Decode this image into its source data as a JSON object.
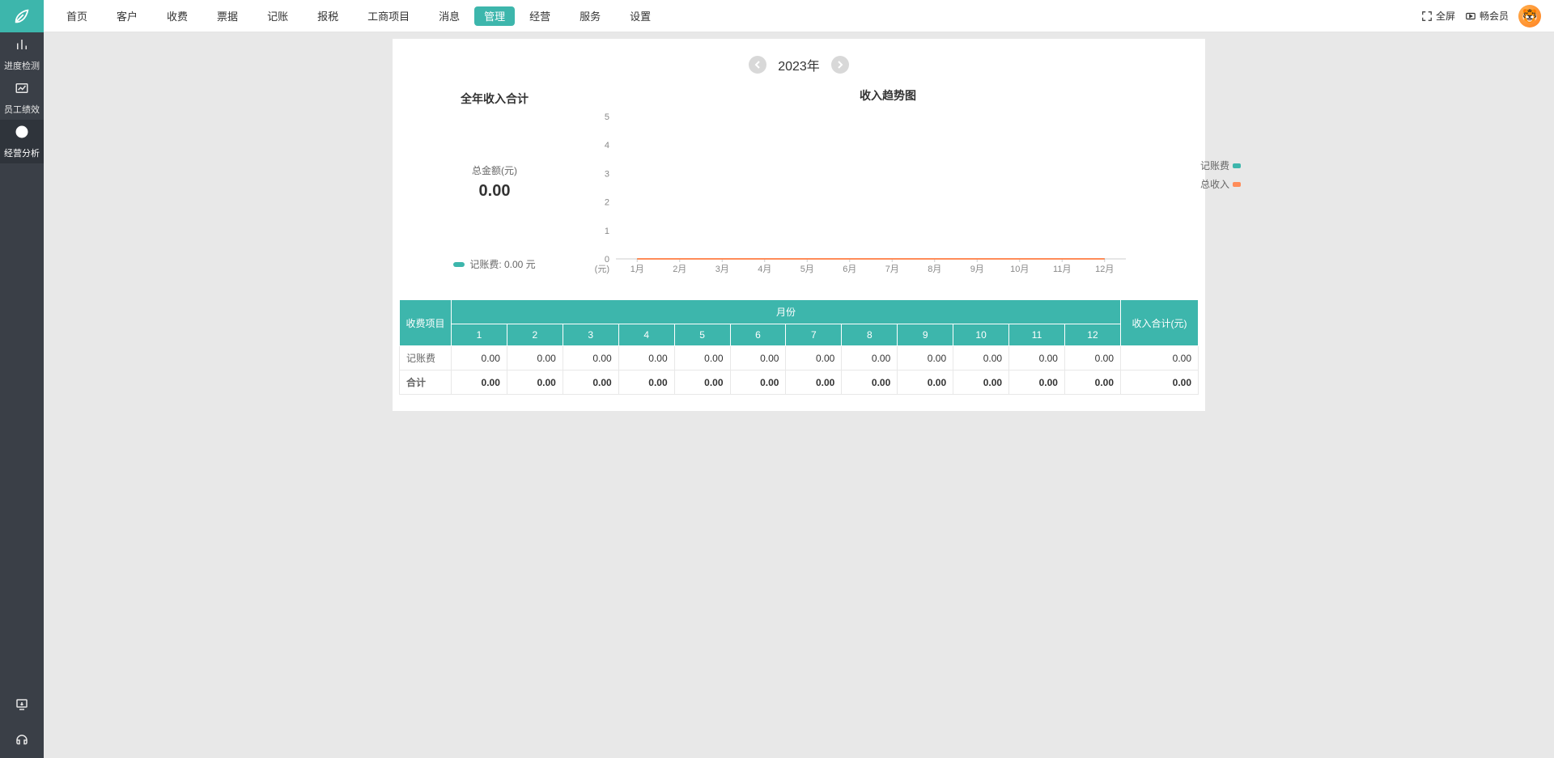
{
  "topnav": {
    "items": [
      "首页",
      "客户",
      "收费",
      "票据",
      "记账",
      "报税",
      "工商项目",
      "消息",
      "管理",
      "经营",
      "服务",
      "设置"
    ],
    "active_index": 8,
    "fullscreen_label": "全屏",
    "member_label": "畅会员"
  },
  "sidebar": {
    "items": [
      {
        "label": "进度检测",
        "icon": "bar"
      },
      {
        "label": "员工绩效",
        "icon": "line"
      },
      {
        "label": "经营分析",
        "icon": "pie"
      }
    ],
    "active_index": 2
  },
  "year_selector": {
    "year": "2023年"
  },
  "summary": {
    "title": "全年收入合计",
    "label": "总金额(元)",
    "value": "0.00",
    "pie_item_label": "记账费: 0.00 元",
    "pie_color": "#3db6ac"
  },
  "chart": {
    "title": "收入趋势图",
    "type": "line",
    "y_axis": {
      "ticks": [
        0,
        1,
        2,
        3,
        4,
        5
      ],
      "unit_label": "(元)"
    },
    "x_axis": {
      "labels": [
        "1月",
        "2月",
        "3月",
        "4月",
        "5月",
        "6月",
        "7月",
        "8月",
        "9月",
        "10月",
        "11月",
        "12月"
      ]
    },
    "series": [
      {
        "name": "记账费",
        "color": "#3db6ac",
        "values": [
          0,
          0,
          0,
          0,
          0,
          0,
          0,
          0,
          0,
          0,
          0,
          0
        ]
      },
      {
        "name": "总收入",
        "color": "#ff8c59",
        "values": [
          0,
          0,
          0,
          0,
          0,
          0,
          0,
          0,
          0,
          0,
          0,
          0
        ]
      }
    ]
  },
  "table": {
    "col0_header": "收费项目",
    "month_group_header": "月份",
    "month_cols": [
      "1",
      "2",
      "3",
      "4",
      "5",
      "6",
      "7",
      "8",
      "9",
      "10",
      "11",
      "12"
    ],
    "total_col_header": "收入合计(元)",
    "rows": [
      {
        "name": "记账费",
        "values": [
          "0.00",
          "0.00",
          "0.00",
          "0.00",
          "0.00",
          "0.00",
          "0.00",
          "0.00",
          "0.00",
          "0.00",
          "0.00",
          "0.00"
        ],
        "total": "0.00"
      },
      {
        "name": "合计",
        "values": [
          "0.00",
          "0.00",
          "0.00",
          "0.00",
          "0.00",
          "0.00",
          "0.00",
          "0.00",
          "0.00",
          "0.00",
          "0.00",
          "0.00"
        ],
        "total": "0.00"
      }
    ]
  },
  "colors": {
    "brand": "#3db6ac",
    "sidebar_bg": "#3a3f47",
    "page_bg": "#e8e8e8"
  }
}
